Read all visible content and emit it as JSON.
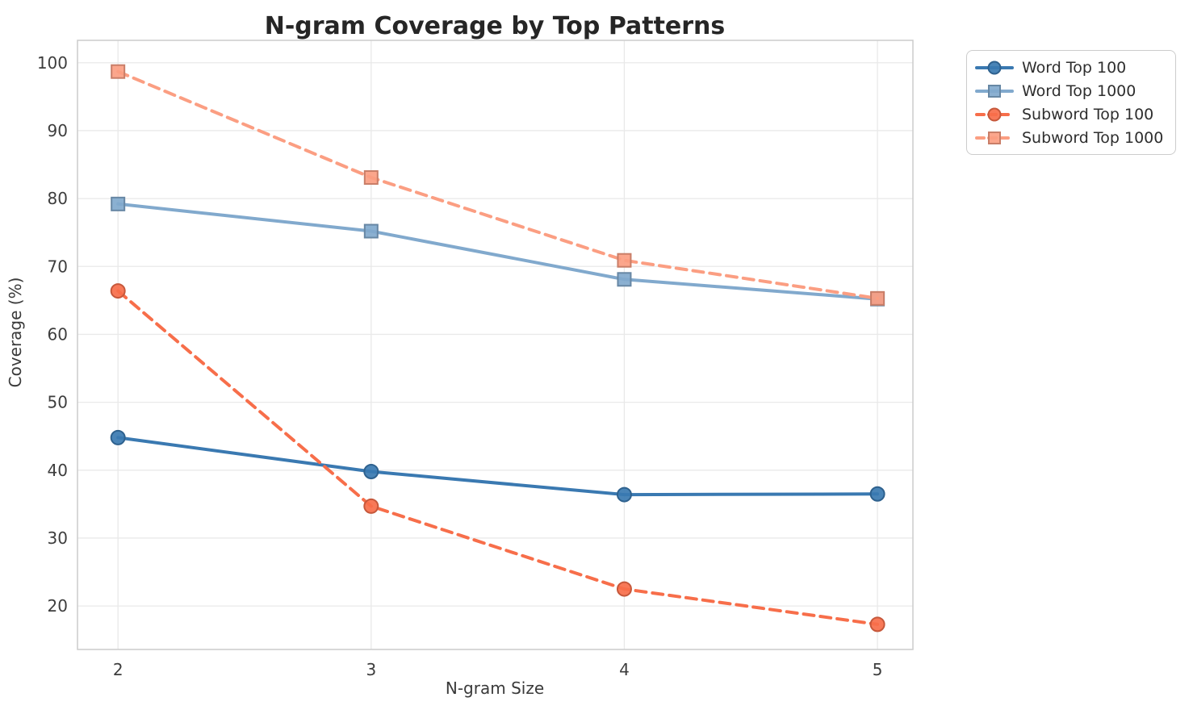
{
  "title": "N-gram Coverage by Top Patterns",
  "chart_data": {
    "type": "line",
    "title": "N-gram Coverage by Top Patterns",
    "xlabel": "N-gram Size",
    "ylabel": "Coverage (%)",
    "x": [
      2,
      3,
      4,
      5
    ],
    "series": [
      {
        "name": "Word Top 100",
        "values": [
          44.8,
          39.8,
          36.4,
          36.5
        ],
        "color": "#3a79b1",
        "style": "solid",
        "marker": "circle"
      },
      {
        "name": "Word Top 1000",
        "values": [
          79.2,
          75.2,
          68.1,
          65.2
        ],
        "color": "#81a9cd",
        "style": "solid",
        "marker": "square"
      },
      {
        "name": "Subword Top 100",
        "values": [
          66.4,
          34.7,
          22.5,
          17.3
        ],
        "color": "#f76e4a",
        "style": "dashed",
        "marker": "circle"
      },
      {
        "name": "Subword Top 1000",
        "values": [
          98.7,
          83.1,
          70.9,
          65.3
        ],
        "color": "#fb9e82",
        "style": "dashed",
        "marker": "square"
      }
    ],
    "xticks": [
      2,
      3,
      4,
      5
    ],
    "yticks": [
      20,
      30,
      40,
      50,
      60,
      70,
      80,
      90,
      100
    ],
    "xlim": [
      1.84,
      5.14
    ],
    "ylim": [
      13.6,
      103.3
    ],
    "grid": true,
    "legend_position": "outside upper right"
  },
  "colors": {
    "background": "#ffffff",
    "grid": "#e9e9e9",
    "spine": "#cccccc",
    "tick_label": "#3d3d3d",
    "title": "#262626",
    "legend_border": "#cccccc"
  }
}
